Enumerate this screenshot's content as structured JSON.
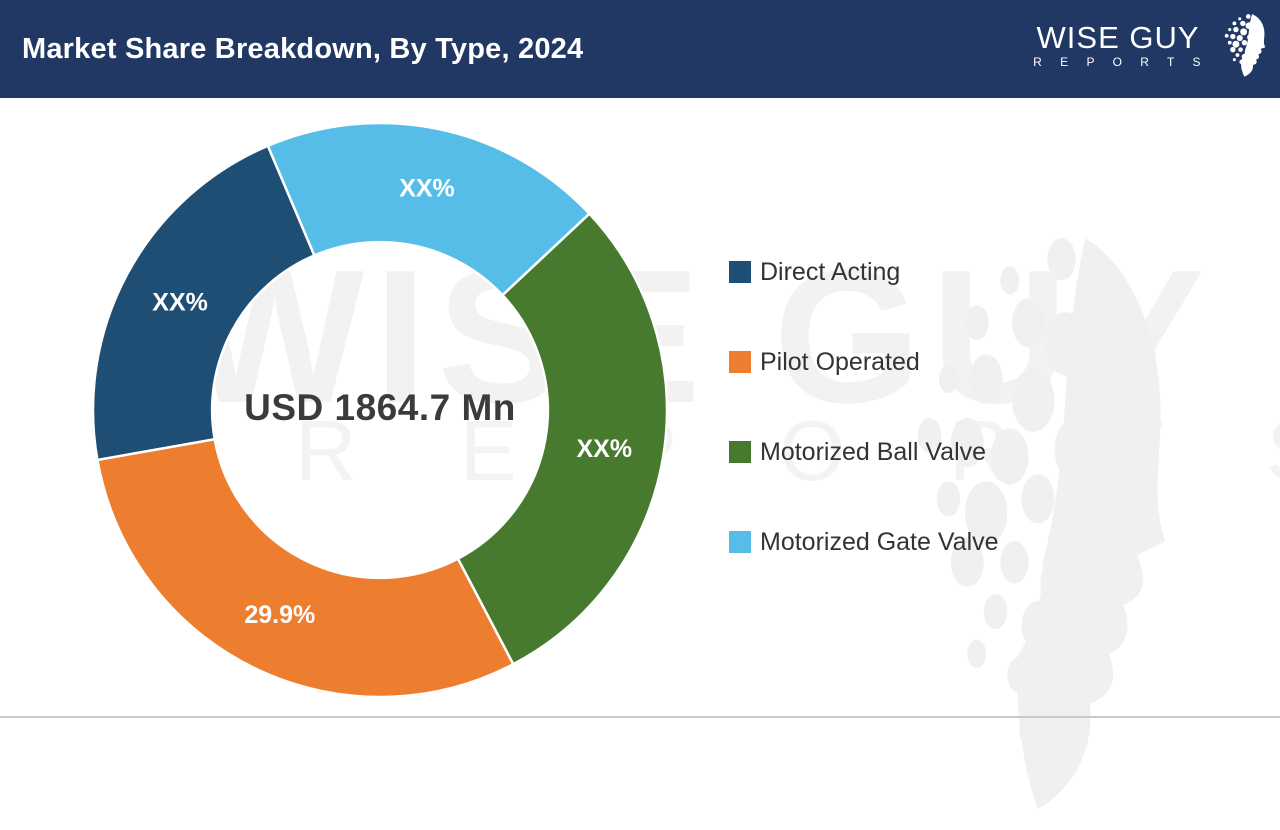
{
  "header": {
    "logo": {
      "line1": "WISE GUY",
      "line2": "R E P O R T S"
    }
  },
  "watermark": {
    "line1": "WISE GUY",
    "line2": "R E P O R T S"
  },
  "chart_data": {
    "type": "donut",
    "title": "Market Share Breakdown, By Type, 2024",
    "center_label": "USD 1864.7 Mn",
    "start_angle_deg": 337,
    "direction": "counterclockwise",
    "inner_radius_ratio": 0.585,
    "legend_position": "right",
    "slices": [
      {
        "label": "Direct Acting",
        "value_pct": 21.4,
        "display": "XX%",
        "color": "#1f4e74"
      },
      {
        "label": "Pilot Operated",
        "value_pct": 29.9,
        "display": "29.9%",
        "color": "#ed7d2f"
      },
      {
        "label": "Motorized Ball Valve",
        "value_pct": 29.3,
        "display": "XX%",
        "color": "#47792e"
      },
      {
        "label": "Motorized Gate Valve",
        "value_pct": 19.4,
        "display": "XX%",
        "color": "#55bde8"
      }
    ],
    "colors": {
      "header_bar": "#213864",
      "center_text": "#3b3b3b",
      "legend_text": "#333333",
      "watermark": "#f2f2f2"
    }
  }
}
